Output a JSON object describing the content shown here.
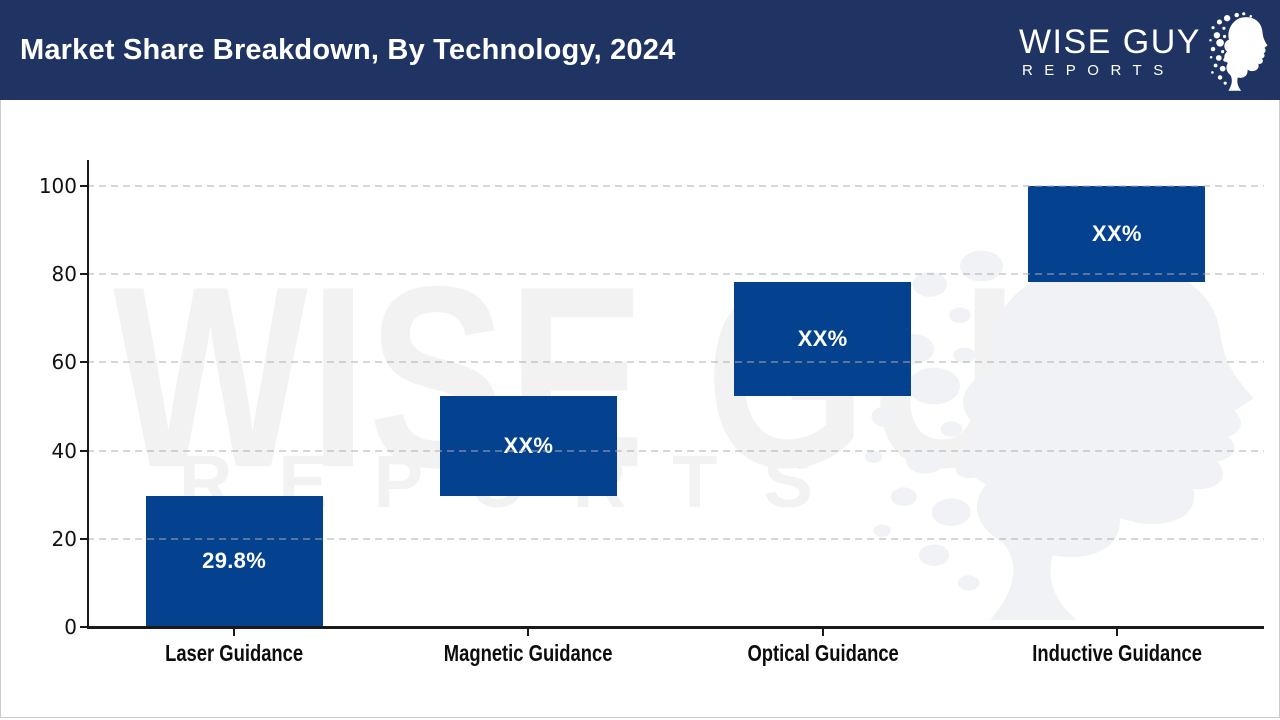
{
  "header": {
    "title": "Market Share Breakdown, By Technology, 2024",
    "bg_color": "#1f3462",
    "logo": {
      "wordmark": "WISE GUY",
      "subtext": "REPORTS"
    }
  },
  "watermark": {
    "wordmark": "WISE GUY",
    "subtext": "REPORTS"
  },
  "chart_data": {
    "type": "bar",
    "subtype": "waterfall",
    "title": "Market Share Breakdown, By Technology, 2024",
    "categories": [
      "Laser Guidance",
      "Magnetic Guidance",
      "Optical Guidance",
      "Inductive Guidance"
    ],
    "segments": [
      {
        "category": "Laser Guidance",
        "start": 0,
        "end": 29.8,
        "value": 29.8,
        "label": "29.8%"
      },
      {
        "category": "Magnetic Guidance",
        "start": 29.8,
        "end": 52.4,
        "value": 22.6,
        "label": "XX%"
      },
      {
        "category": "Optical Guidance",
        "start": 52.4,
        "end": 78.2,
        "value": 25.8,
        "label": "XX%"
      },
      {
        "category": "Inductive Guidance",
        "start": 78.2,
        "end": 100,
        "value": 21.8,
        "label": "XX%"
      }
    ],
    "xlabel": "",
    "ylabel": "",
    "ylim": [
      0,
      100
    ],
    "yticks": [
      0,
      20,
      40,
      60,
      80,
      100
    ],
    "grid": "horizontal-dashed",
    "legend": "none",
    "bar_color": "#04418f",
    "bar_label_color": "#ffffff",
    "axis_color": "#1a1a1a"
  }
}
